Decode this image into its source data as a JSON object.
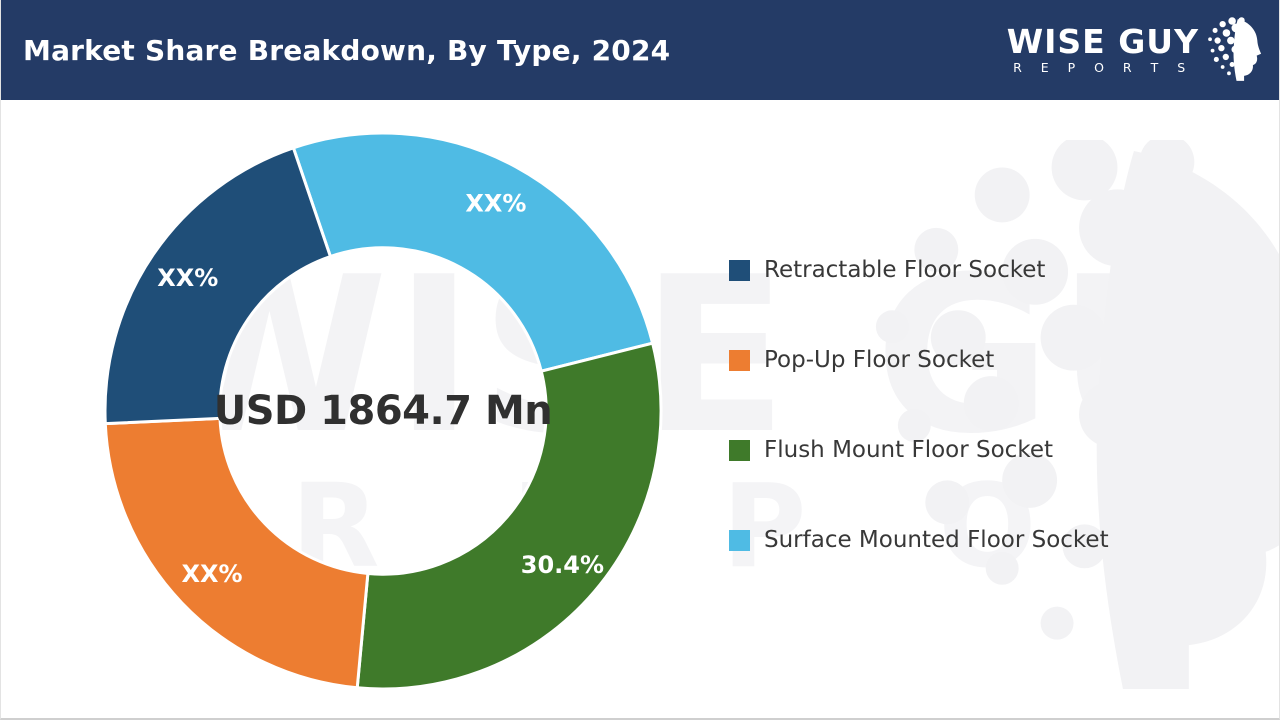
{
  "header": {
    "title": "Market Share Breakdown, By Type, 2024",
    "logo": {
      "main": "WISE GUY",
      "sub": "R E P O R T S"
    }
  },
  "watermark": {
    "line1": "WISE GUY",
    "line2": "R E P O R T S"
  },
  "chart_data": {
    "type": "pie",
    "subtype": "donut",
    "title": "Market Share Breakdown, By Type, 2024",
    "center_label": "USD 1864.7 Mn",
    "start_angle_deg": -18.8,
    "inner_radius_ratio": 0.587,
    "legend_position": "right",
    "segments": [
      {
        "name": "Surface Mounted Floor Socket",
        "value_pct": 26.3,
        "display_label": "XX%",
        "color": "#4fbbe4"
      },
      {
        "name": "Flush Mount Floor Socket",
        "value_pct": 30.4,
        "display_label": "30.4%",
        "color": "#3f7a2a"
      },
      {
        "name": "Pop-Up Floor Socket",
        "value_pct": 22.8,
        "display_label": "XX%",
        "color": "#ed7d31"
      },
      {
        "name": "Retractable Floor Socket",
        "value_pct": 20.5,
        "display_label": "XX%",
        "color": "#1f4e78"
      }
    ],
    "legend_order": [
      "Retractable Floor Socket",
      "Pop-Up Floor Socket",
      "Flush Mount Floor Socket",
      "Surface Mounted Floor Socket"
    ]
  }
}
